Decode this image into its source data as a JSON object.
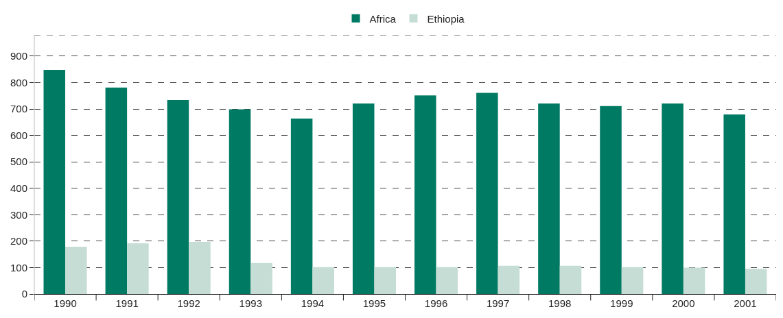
{
  "chart_data": {
    "type": "bar",
    "categories": [
      "1990",
      "1991",
      "1992",
      "1993",
      "1994",
      "1995",
      "1996",
      "1997",
      "1998",
      "1999",
      "2000",
      "2001"
    ],
    "series": [
      {
        "name": "Africa",
        "color": "#007a63",
        "values": [
          848,
          781,
          734,
          699,
          664,
          721,
          751,
          761,
          721,
          711,
          721,
          679
        ]
      },
      {
        "name": "Ethiopia",
        "color": "#c5ddd4",
        "values": [
          179,
          192,
          197,
          117,
          102,
          102,
          102,
          107,
          107,
          102,
          100,
          95
        ]
      }
    ],
    "ylim": [
      0,
      980
    ],
    "yticks": [
      0,
      100,
      200,
      300,
      400,
      500,
      600,
      700,
      800,
      900
    ],
    "grid": "y",
    "legend": "top"
  }
}
